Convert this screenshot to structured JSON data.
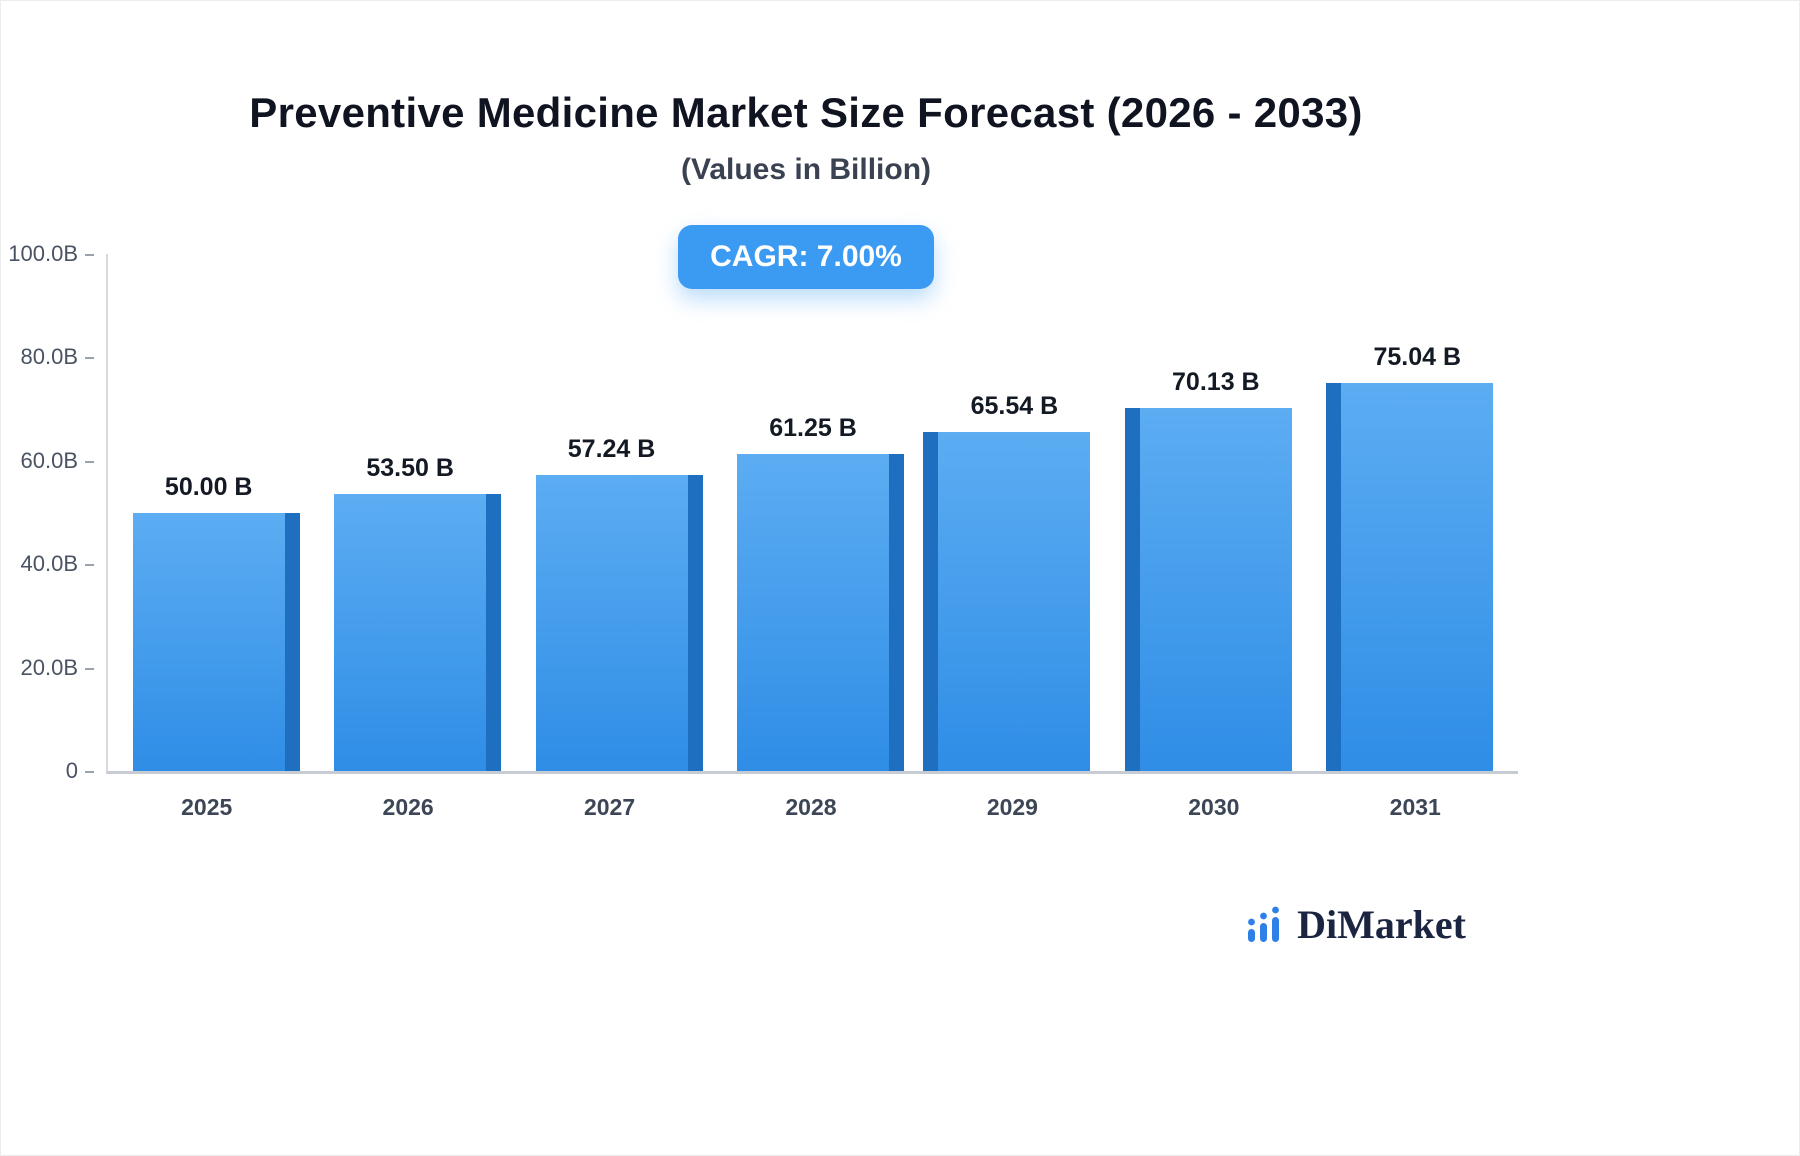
{
  "header": {
    "title": "Preventive Medicine Market Size Forecast (2026 - 2033)",
    "subtitle": "(Values in Billion)"
  },
  "badge": {
    "label": "CAGR: 7.00%",
    "bg": "#3b9bf3"
  },
  "chart_data": {
    "type": "bar",
    "title": "Preventive Medicine Market Size Forecast (2026 - 2033)",
    "subtitle": "(Values in Billion)",
    "categories": [
      "2025",
      "2026",
      "2027",
      "2028",
      "2029",
      "2030",
      "2031"
    ],
    "values": [
      50.0,
      53.5,
      57.24,
      61.25,
      65.54,
      70.13,
      75.04
    ],
    "bar_labels": [
      "50.00 B",
      "53.50 B",
      "57.24 B",
      "61.25 B",
      "65.54 B",
      "70.13 B",
      "75.04 B"
    ],
    "xlabel": "",
    "ylabel": "",
    "ylim": [
      0,
      100
    ],
    "yticks": [
      {
        "value": 100,
        "label": "100.0B"
      },
      {
        "value": 80,
        "label": "80.0B"
      },
      {
        "value": 60,
        "label": "60.0B"
      },
      {
        "value": 40,
        "label": "40.0B"
      },
      {
        "value": 20,
        "label": "20.0B"
      },
      {
        "value": 0,
        "label": "0"
      }
    ],
    "grid": false,
    "legend": "none",
    "colors": {
      "bar_top": "#5cadf2",
      "bar_bottom": "#2f8de6",
      "bar_side": "#1f6fc0"
    }
  },
  "logo": {
    "text": "DiMarket",
    "color": "#1b2440",
    "icon_color": "#2e7fe8",
    "icon": "bar-chart-dots-icon"
  }
}
